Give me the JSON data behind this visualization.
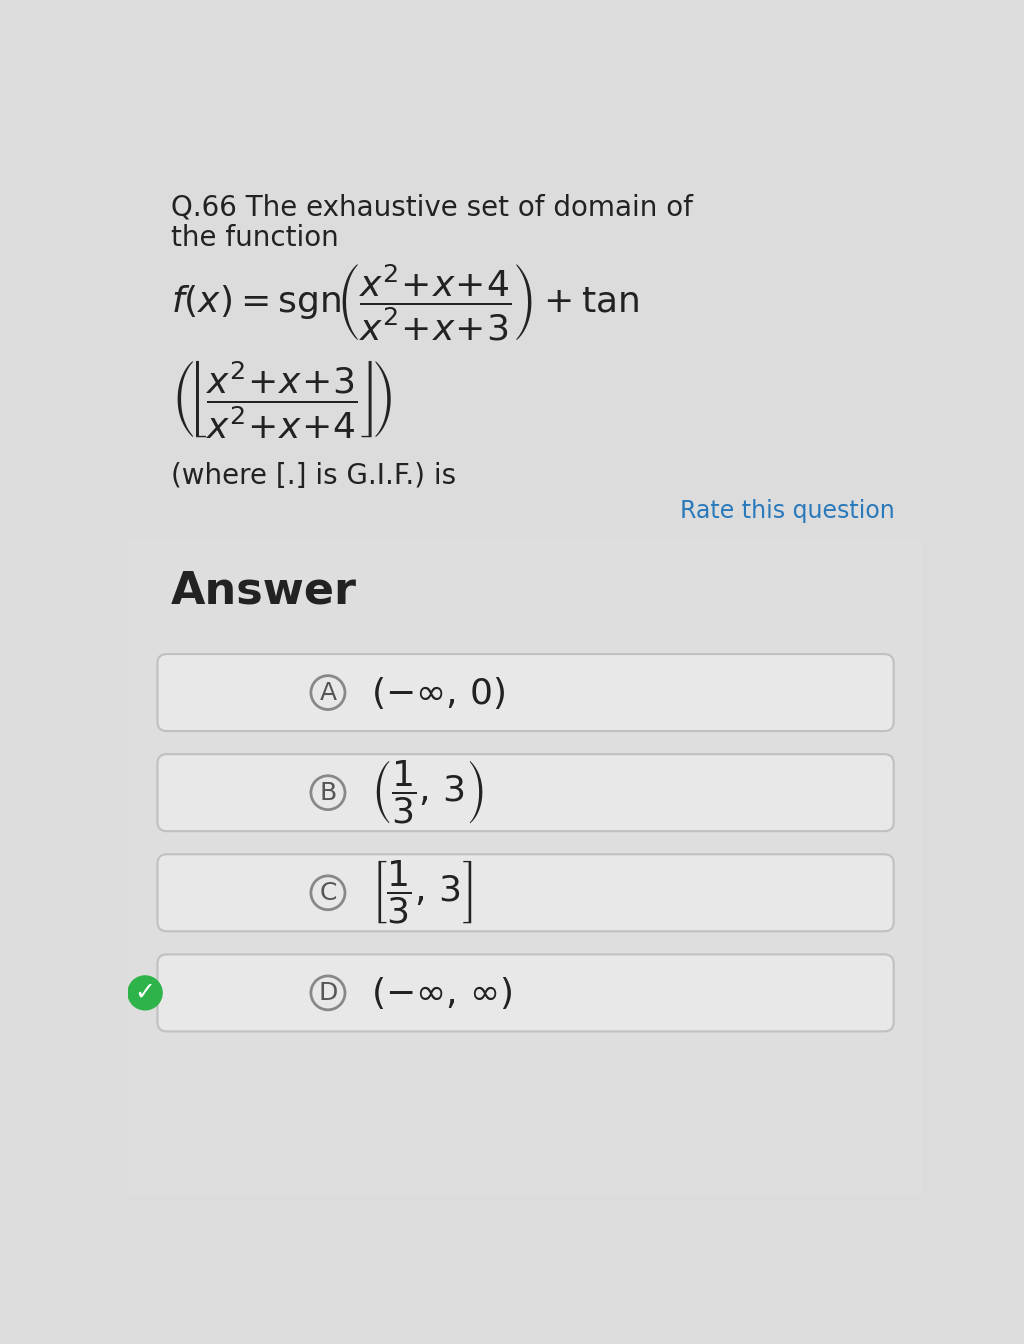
{
  "background_color": "#dcdcdc",
  "question_text_line1": "Q.66 The exhaustive set of domain of",
  "question_text_line2": "the function",
  "where_text": "(where [.] is G.I.F.) is",
  "rate_text": "Rate this question",
  "rate_color": "#2979bb",
  "answer_label": "Answer",
  "correct_check_color": "#2db34a",
  "text_color": "#222222",
  "option_bg": "#e8e8e8",
  "option_border": "#c8c8c8",
  "separator_color": "#bbbbbb",
  "font_size_question": 20,
  "font_size_formula": 26,
  "font_size_answer_label": 28,
  "font_size_options": 28,
  "options": [
    {
      "label": "A",
      "correct": false
    },
    {
      "label": "B",
      "correct": false
    },
    {
      "label": "C",
      "correct": false
    },
    {
      "label": "D",
      "correct": true
    }
  ]
}
